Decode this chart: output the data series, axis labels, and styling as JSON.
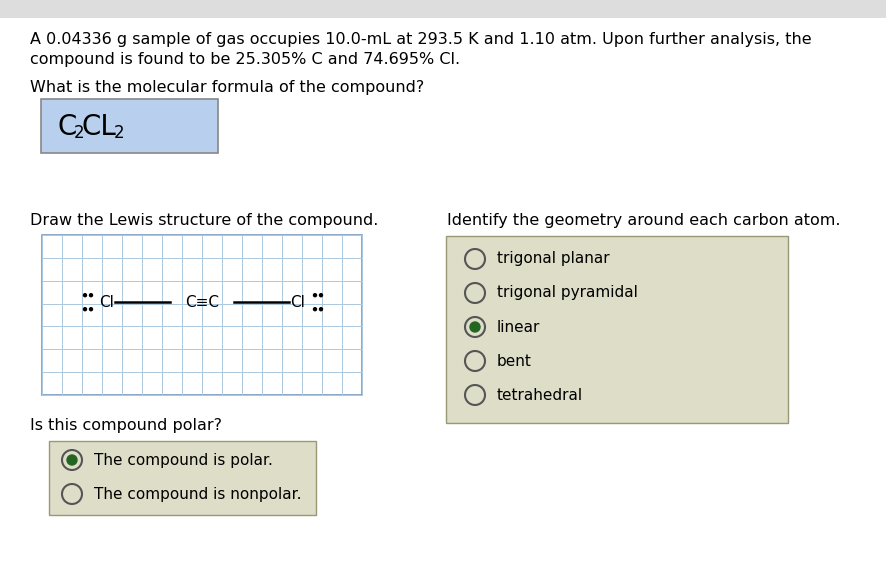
{
  "bg_color": "#ffffff",
  "text_color": "#000000",
  "para1": "A 0.04336 g sample of gas occupies 10.0-mL at 293.5 K and 1.10 atm. Upon further analysis, the",
  "para1b": "compound is found to be 25.305% C and 74.695% Cl.",
  "para2": "What is the molecular formula of the compound?",
  "formula_box_color": "#b8d0ee",
  "formula_box_edge": "#888888",
  "draw_lewis_label": "Draw the Lewis structure of the compound.",
  "geometry_label": "Identify the geometry around each carbon atom.",
  "lewis_grid_color": "#aac8e0",
  "lewis_box_edge": "#7799bb",
  "geometry_options": [
    "trigonal planar",
    "trigonal pyramidal",
    "linear",
    "bent",
    "tetrahedral"
  ],
  "geometry_selected": 2,
  "geometry_box_color": "#ddddc8",
  "geometry_box_edge": "#999977",
  "polar_label": "Is this compound polar?",
  "polar_options": [
    "The compound is polar.",
    "The compound is nonpolar."
  ],
  "polar_selected": 0,
  "polar_box_color": "#ddddc8",
  "polar_box_edge": "#999977",
  "radio_fill_color": "#226622",
  "radio_edge_color": "#555555",
  "fontsize_main": 11.5,
  "fontsize_formula": 20,
  "fontsize_sub": 12,
  "fontsize_lewis": 11,
  "fontsize_radio": 11
}
